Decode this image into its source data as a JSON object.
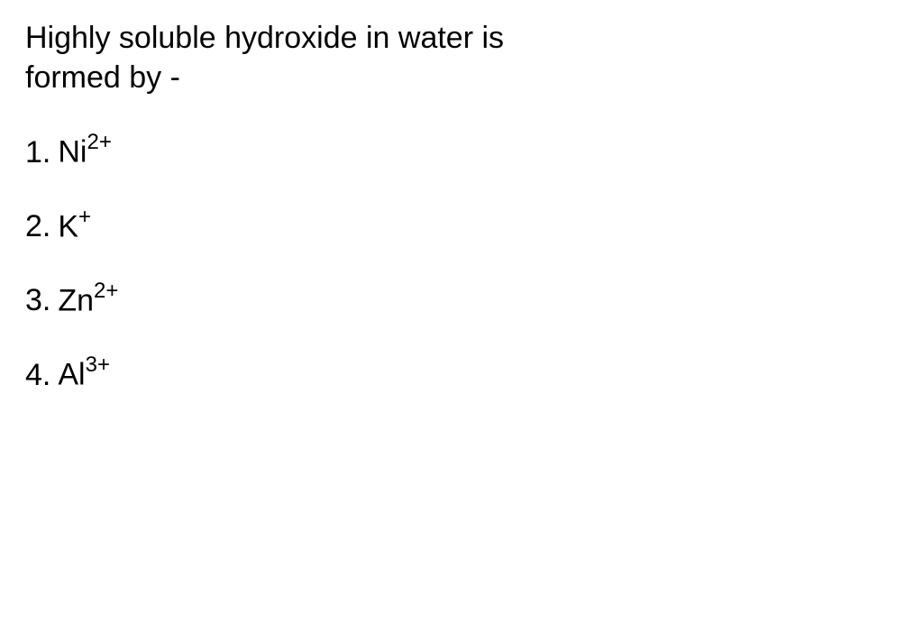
{
  "question": {
    "line1": "Highly soluble hydroxide in water is",
    "line2": "formed by -"
  },
  "options": [
    {
      "number": "1.",
      "element": "Ni",
      "charge": "2+"
    },
    {
      "number": "2.",
      "element": "K",
      "charge": "+"
    },
    {
      "number": "3.",
      "element": "Zn",
      "charge": "2+"
    },
    {
      "number": "4.",
      "element": "Al",
      "charge": "3+"
    }
  ],
  "styling": {
    "background_color": "#ffffff",
    "text_color": "#000000",
    "question_fontsize": 34,
    "option_fontsize": 34,
    "superscript_fontsize": 24,
    "font_family": "Arial",
    "option_gap": 40,
    "question_bottom_margin": 38
  }
}
